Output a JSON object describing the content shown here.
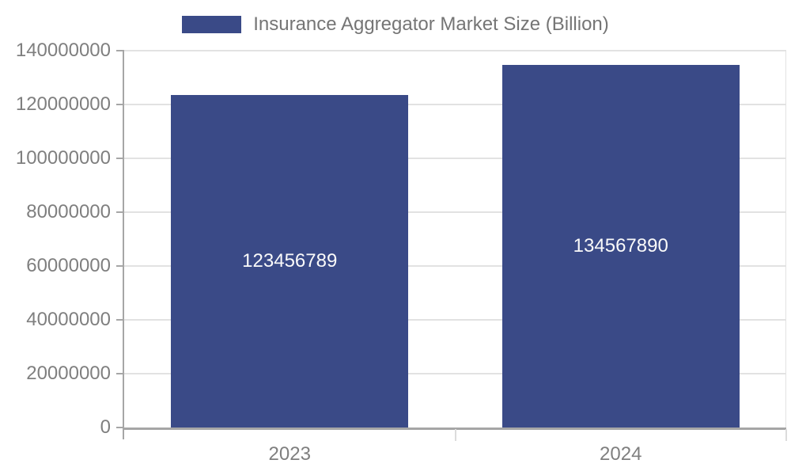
{
  "chart_data": {
    "type": "bar",
    "title": "",
    "categories": [
      "2023",
      "2024"
    ],
    "series": [
      {
        "name": "Insurance Aggregator Market Size (Billion)",
        "values": [
          123456789,
          134567890
        ]
      }
    ],
    "bar_labels": [
      "123456789",
      "134567890"
    ],
    "ylim": [
      0,
      140000000
    ],
    "yticks": [
      0,
      20000000,
      40000000,
      60000000,
      80000000,
      100000000,
      120000000,
      140000000
    ],
    "ytick_labels": [
      "0",
      "20000000",
      "40000000",
      "60000000",
      "80000000",
      "100000000",
      "120000000",
      "140000000"
    ],
    "grid": true,
    "legend_position": "top",
    "legend": {
      "label": "Insurance Aggregator Market Size (Billion)"
    }
  },
  "colors": {
    "bar": "#3A4A87",
    "bar_label_text": "#FAFAFA",
    "axis_line": "#A6A6A6",
    "gridline": "#E2E2E2",
    "minor_tick": "#DCDCDC",
    "tick_label_text": "#7F7F7F",
    "legend_text": "#757575",
    "background": "#FFFFFF"
  }
}
